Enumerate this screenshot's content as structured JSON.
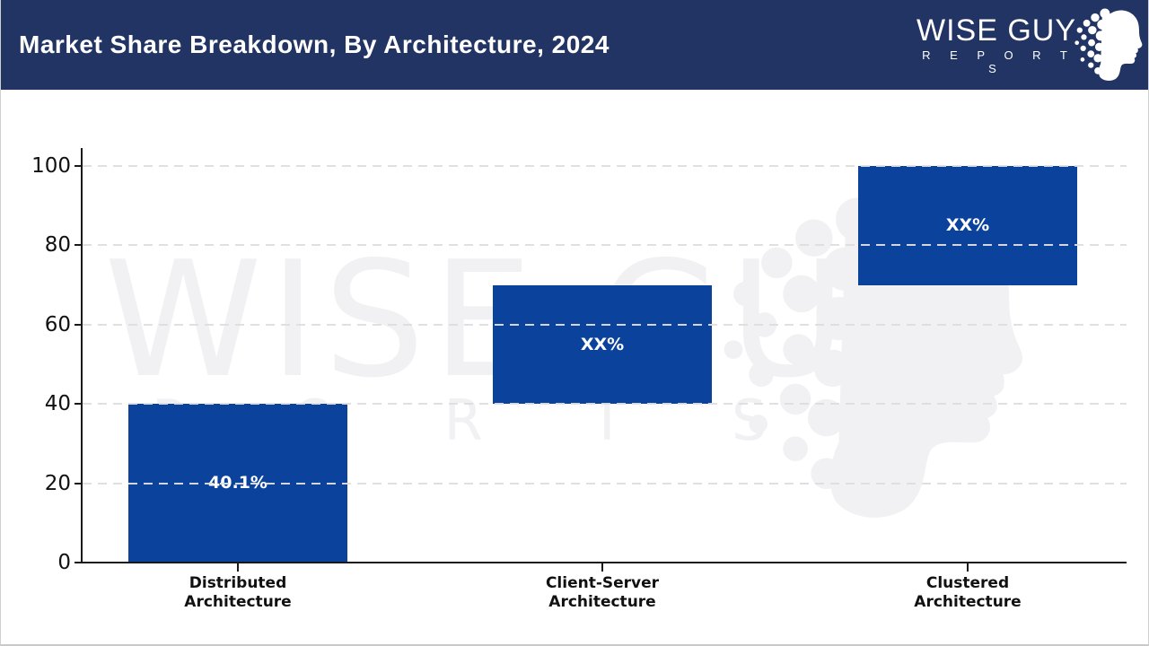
{
  "header": {
    "title": "Market Share Breakdown, By Architecture, 2024",
    "logo": {
      "line1": "WISE GUY",
      "line2": "R E P O R T S"
    }
  },
  "watermark": {
    "line1": "WISE GUY",
    "line2": "P O R T S"
  },
  "colors": {
    "header_bg": "#213464",
    "bar": "#0a429c",
    "bar_label": "#ffffff",
    "gridline": "#dedede",
    "axis": "#191919",
    "watermark": "#f1f1f4"
  },
  "chart_data": {
    "type": "bar",
    "subtype": "floating-segment (waterfall style)",
    "title": "Market Share Breakdown, By Architecture, 2024",
    "xlabel": "",
    "ylabel": "",
    "ylim": [
      0,
      105
    ],
    "yticks": [
      0,
      20,
      40,
      60,
      80,
      100
    ],
    "grid": "horizontal dashed, drawn over bars",
    "legend": "none",
    "categories": [
      "Distributed Architecture",
      "Client-Server Architecture",
      "Clustered Architecture"
    ],
    "bars": [
      {
        "category_lines": [
          "Distributed",
          "Architecture"
        ],
        "start": 0,
        "end": 40.1,
        "label": "40.1%"
      },
      {
        "category_lines": [
          "Client-Server",
          "Architecture"
        ],
        "start": 40.1,
        "end": 70,
        "label": "XX%"
      },
      {
        "category_lines": [
          "Clustered",
          "Architecture"
        ],
        "start": 70,
        "end": 100,
        "label": "XX%"
      }
    ]
  }
}
